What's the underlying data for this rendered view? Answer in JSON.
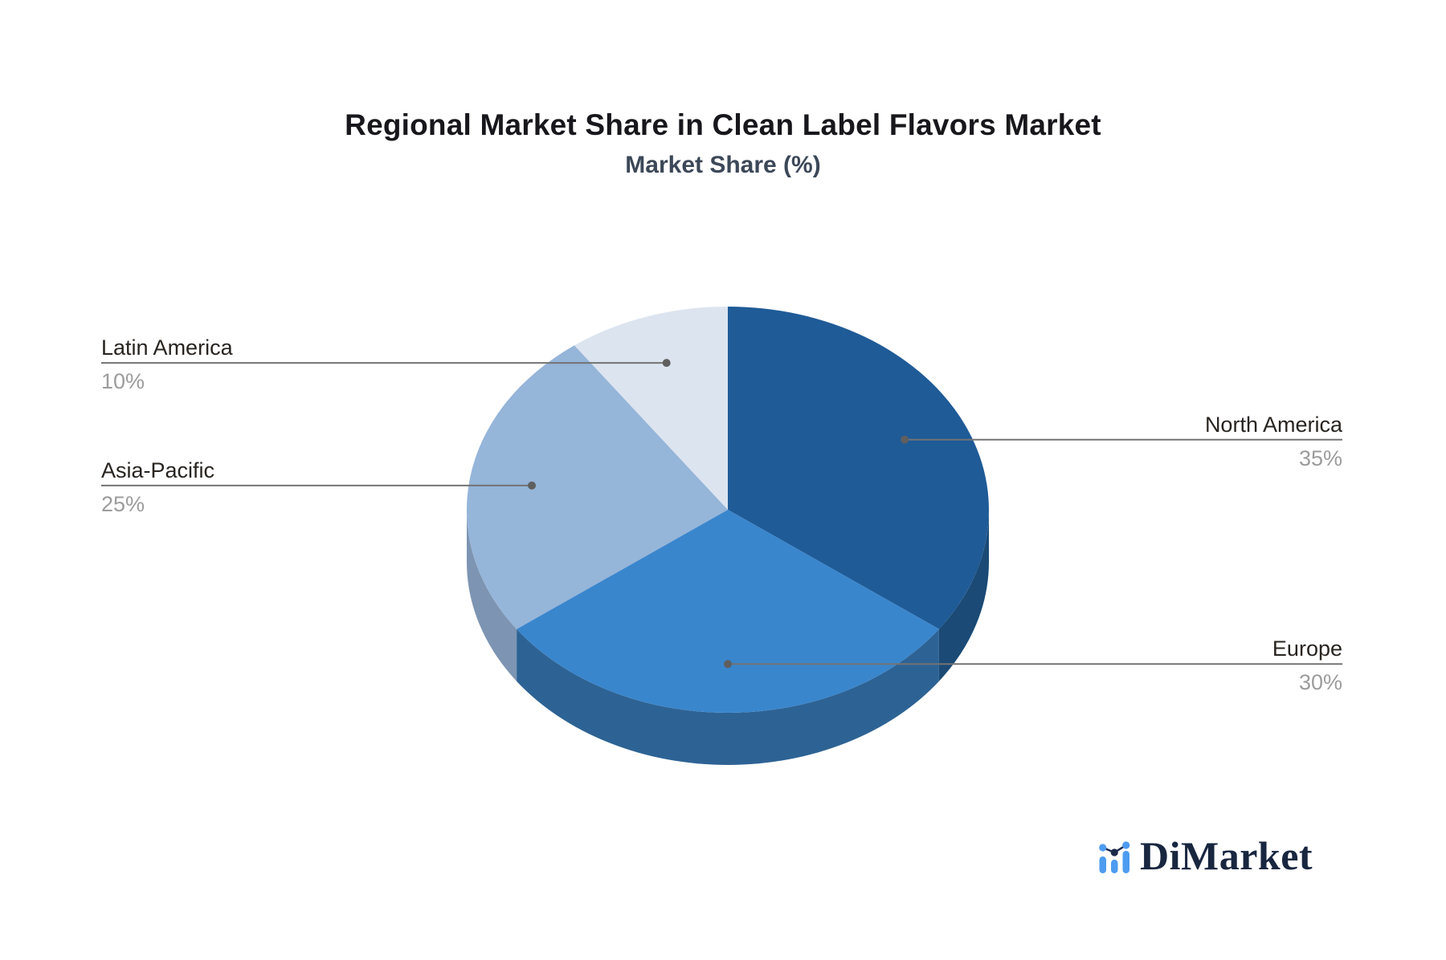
{
  "chart_data": {
    "type": "pie",
    "title": "Regional Market Share in Clean Label Flavors Market",
    "subtitle": "Market Share (%)",
    "unit": "%",
    "style": "3d-pie",
    "direction": "clockwise",
    "start_angle": "12 o'clock",
    "legend_position": "none (callout labels)",
    "slices": [
      {
        "name": "North America",
        "value": 35,
        "value_label": "35%",
        "color": "#1F5B97",
        "side_color": "#1A4A75",
        "label_side": "right"
      },
      {
        "name": "Europe",
        "value": 30,
        "value_label": "30%",
        "color": "#3A86CD",
        "side_color": "#2D6394",
        "label_side": "right"
      },
      {
        "name": "Asia-Pacific",
        "value": 25,
        "value_label": "25%",
        "color": "#95B5D9",
        "side_color": "#7D95B2",
        "label_side": "left"
      },
      {
        "name": "Latin America",
        "value": 10,
        "value_label": "10%",
        "color": "#DCE4EF",
        "side_color": "#C2CBD9",
        "label_side": "left"
      }
    ],
    "colors": {
      "title": "#17171C",
      "subtitle": "#3C4858",
      "label_name": "#282420",
      "label_value": "#9C9C9C",
      "callout_line": "#737373",
      "callout_dot": "#5F5F5F"
    }
  },
  "branding": {
    "logo_text": "DiMarket",
    "logo_icon": "bar-line-chart-icon",
    "logo_text_color": "#18263F",
    "logo_bar_color": "#4D9CF1",
    "logo_line_color": "#1B2B4A"
  }
}
